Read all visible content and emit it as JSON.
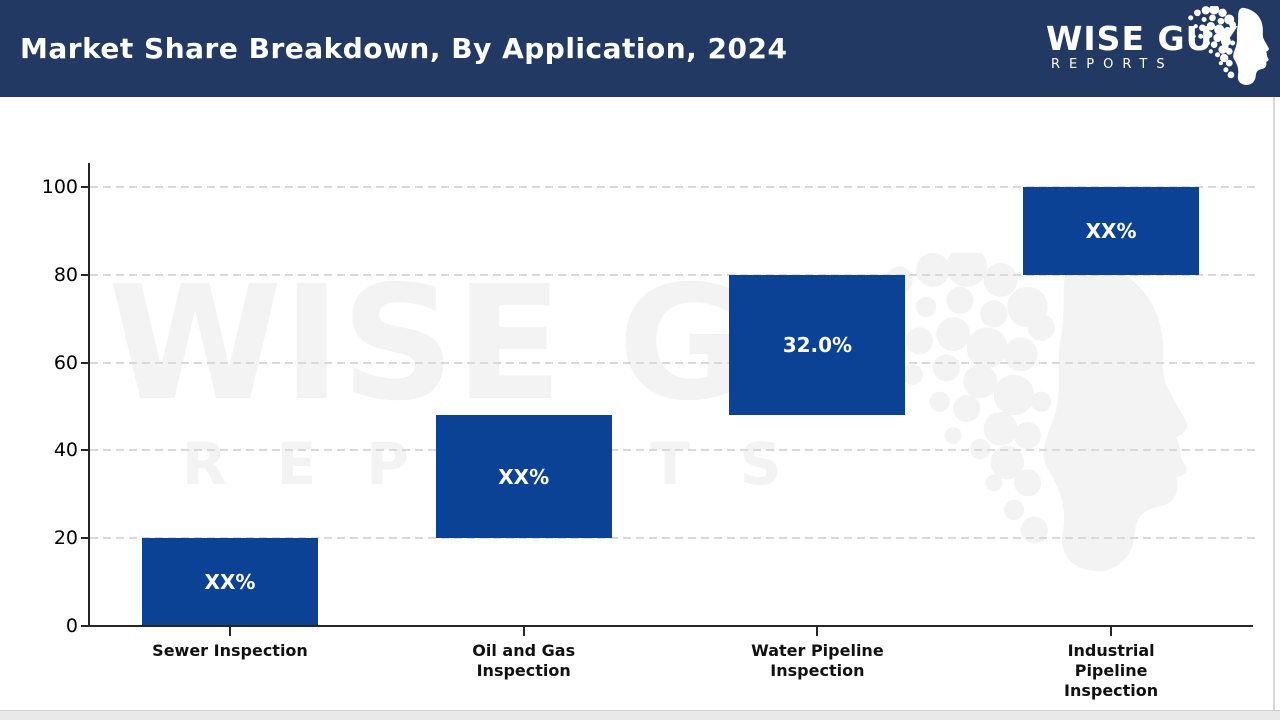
{
  "header": {
    "title": "Market Share Breakdown, By Application, 2024",
    "bg_color": "#223a63",
    "logo": {
      "line1": "WISE GUY",
      "line2": "REPORTS"
    }
  },
  "watermark": {
    "line1": "WISE GU",
    "line2": "REPORTS"
  },
  "chart_data": {
    "type": "bar",
    "subtype": "waterfall",
    "title": "Market Share Breakdown, By Application, 2024",
    "xlabel": "",
    "ylabel": "",
    "categories": [
      "Sewer Inspection",
      "Oil and Gas Inspection",
      "Water Pipeline Inspection",
      "Industrial Pipeline Inspection"
    ],
    "categories_display": [
      "Sewer Inspection",
      "Oil and Gas\nInspection",
      "Water Pipeline\nInspection",
      "Industrial\nPipeline\nInspection"
    ],
    "values": [
      20,
      28,
      32,
      20
    ],
    "cumulative_start": [
      0,
      20,
      48,
      80
    ],
    "bar_labels": [
      "XX%",
      "XX%",
      "32.0%",
      "XX%"
    ],
    "bar_color": "#0c4295",
    "yticks": [
      0,
      20,
      40,
      60,
      80,
      100
    ],
    "ylim": [
      0,
      105
    ],
    "grid": "horizontal-dashed",
    "gridline_color": "#d9d9d9",
    "legend": "none"
  }
}
